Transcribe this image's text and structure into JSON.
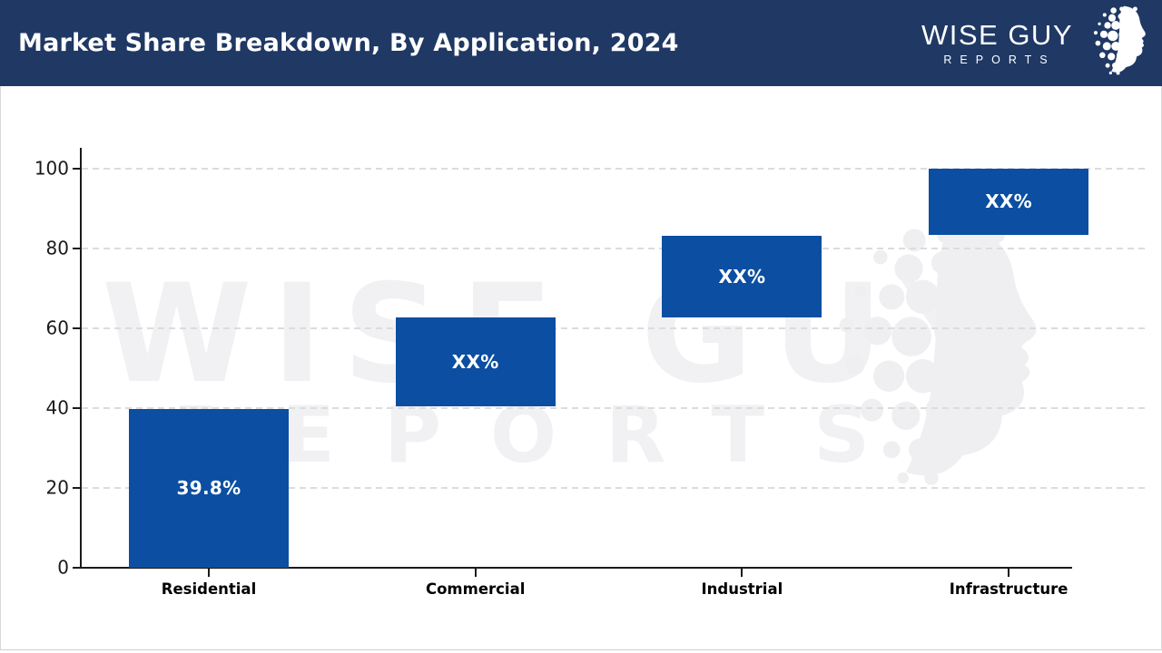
{
  "header": {
    "title": "Market Share Breakdown, By Application, 2024",
    "bg_color": "#1f3864",
    "logo": {
      "line1": "WISE GUY",
      "line2": "REPORTS"
    }
  },
  "watermark": {
    "line1": "WISE GUY",
    "line2": "REPORTS"
  },
  "chart_data": {
    "type": "bar",
    "subtype": "waterfall",
    "title": "Market Share Breakdown, By Application, 2024",
    "categories": [
      "Residential",
      "Commercial",
      "Industrial",
      "Infrastructure"
    ],
    "segments": [
      {
        "category": "Residential",
        "start": 0,
        "end": 39.8,
        "label": "39.8%"
      },
      {
        "category": "Commercial",
        "start": 40.4,
        "end": 62.8,
        "label": "XX%"
      },
      {
        "category": "Industrial",
        "start": 62.8,
        "end": 83.2,
        "label": "XX%"
      },
      {
        "category": "Infrastructure",
        "start": 83.5,
        "end": 100,
        "label": "XX%"
      }
    ],
    "xlabel": "",
    "ylabel": "",
    "ylim": [
      0,
      105
    ],
    "yticks": [
      0,
      20,
      40,
      60,
      80,
      100
    ],
    "grid": "horizontal-dashed",
    "legend": "none",
    "bar_color": "#0b4ea2",
    "bar_label_color": "#ffffff",
    "axis_color": "#1a1a1a",
    "gridline_color": "#dcdcdc"
  }
}
